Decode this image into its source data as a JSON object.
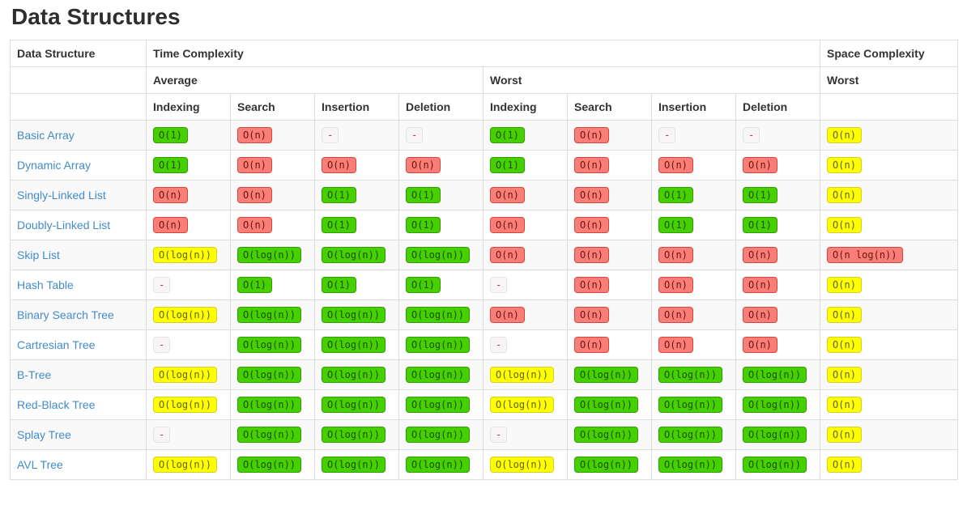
{
  "title": "Data Structures",
  "colors": {
    "excellent_green": "#46d000",
    "poor_red": "#f97e78",
    "fair_yellow": "#ffff00",
    "na_gray": "#f7f5f6",
    "link_blue": "#428bca",
    "border": "#dddddd",
    "stripe": "#f9f9f9"
  },
  "table": {
    "headers": {
      "data_structure": "Data Structure",
      "time_complexity": "Time Complexity",
      "space_complexity": "Space Complexity",
      "average": "Average",
      "worst": "Worst",
      "space_worst": "Worst",
      "operations": [
        "Indexing",
        "Search",
        "Insertion",
        "Deletion",
        "Indexing",
        "Search",
        "Insertion",
        "Deletion"
      ]
    },
    "rows": [
      {
        "name": "Basic Array",
        "cells": [
          {
            "t": "O(1)",
            "c": "green"
          },
          {
            "t": "O(n)",
            "c": "red"
          },
          {
            "t": "-",
            "c": "gray"
          },
          {
            "t": "-",
            "c": "gray"
          },
          {
            "t": "O(1)",
            "c": "green"
          },
          {
            "t": "O(n)",
            "c": "red"
          },
          {
            "t": "-",
            "c": "gray"
          },
          {
            "t": "-",
            "c": "gray"
          },
          {
            "t": "O(n)",
            "c": "yellow"
          }
        ]
      },
      {
        "name": "Dynamic Array",
        "cells": [
          {
            "t": "O(1)",
            "c": "green"
          },
          {
            "t": "O(n)",
            "c": "red"
          },
          {
            "t": "O(n)",
            "c": "red"
          },
          {
            "t": "O(n)",
            "c": "red"
          },
          {
            "t": "O(1)",
            "c": "green"
          },
          {
            "t": "O(n)",
            "c": "red"
          },
          {
            "t": "O(n)",
            "c": "red"
          },
          {
            "t": "O(n)",
            "c": "red"
          },
          {
            "t": "O(n)",
            "c": "yellow"
          }
        ]
      },
      {
        "name": "Singly-Linked List",
        "cells": [
          {
            "t": "O(n)",
            "c": "red"
          },
          {
            "t": "O(n)",
            "c": "red"
          },
          {
            "t": "O(1)",
            "c": "green"
          },
          {
            "t": "O(1)",
            "c": "green"
          },
          {
            "t": "O(n)",
            "c": "red"
          },
          {
            "t": "O(n)",
            "c": "red"
          },
          {
            "t": "O(1)",
            "c": "green"
          },
          {
            "t": "O(1)",
            "c": "green"
          },
          {
            "t": "O(n)",
            "c": "yellow"
          }
        ]
      },
      {
        "name": "Doubly-Linked List",
        "cells": [
          {
            "t": "O(n)",
            "c": "red"
          },
          {
            "t": "O(n)",
            "c": "red"
          },
          {
            "t": "O(1)",
            "c": "green"
          },
          {
            "t": "O(1)",
            "c": "green"
          },
          {
            "t": "O(n)",
            "c": "red"
          },
          {
            "t": "O(n)",
            "c": "red"
          },
          {
            "t": "O(1)",
            "c": "green"
          },
          {
            "t": "O(1)",
            "c": "green"
          },
          {
            "t": "O(n)",
            "c": "yellow"
          }
        ]
      },
      {
        "name": "Skip List",
        "cells": [
          {
            "t": "O(log(n))",
            "c": "yellow"
          },
          {
            "t": "O(log(n))",
            "c": "green"
          },
          {
            "t": "O(log(n))",
            "c": "green"
          },
          {
            "t": "O(log(n))",
            "c": "green"
          },
          {
            "t": "O(n)",
            "c": "red"
          },
          {
            "t": "O(n)",
            "c": "red"
          },
          {
            "t": "O(n)",
            "c": "red"
          },
          {
            "t": "O(n)",
            "c": "red"
          },
          {
            "t": "O(n log(n))",
            "c": "red"
          }
        ]
      },
      {
        "name": "Hash Table",
        "cells": [
          {
            "t": "-",
            "c": "gray"
          },
          {
            "t": "O(1)",
            "c": "green"
          },
          {
            "t": "O(1)",
            "c": "green"
          },
          {
            "t": "O(1)",
            "c": "green"
          },
          {
            "t": "-",
            "c": "gray"
          },
          {
            "t": "O(n)",
            "c": "red"
          },
          {
            "t": "O(n)",
            "c": "red"
          },
          {
            "t": "O(n)",
            "c": "red"
          },
          {
            "t": "O(n)",
            "c": "yellow"
          }
        ]
      },
      {
        "name": "Binary Search Tree",
        "cells": [
          {
            "t": "O(log(n))",
            "c": "yellow"
          },
          {
            "t": "O(log(n))",
            "c": "green"
          },
          {
            "t": "O(log(n))",
            "c": "green"
          },
          {
            "t": "O(log(n))",
            "c": "green"
          },
          {
            "t": "O(n)",
            "c": "red"
          },
          {
            "t": "O(n)",
            "c": "red"
          },
          {
            "t": "O(n)",
            "c": "red"
          },
          {
            "t": "O(n)",
            "c": "red"
          },
          {
            "t": "O(n)",
            "c": "yellow"
          }
        ]
      },
      {
        "name": "Cartresian Tree",
        "cells": [
          {
            "t": "-",
            "c": "gray"
          },
          {
            "t": "O(log(n))",
            "c": "green"
          },
          {
            "t": "O(log(n))",
            "c": "green"
          },
          {
            "t": "O(log(n))",
            "c": "green"
          },
          {
            "t": "-",
            "c": "gray"
          },
          {
            "t": "O(n)",
            "c": "red"
          },
          {
            "t": "O(n)",
            "c": "red"
          },
          {
            "t": "O(n)",
            "c": "red"
          },
          {
            "t": "O(n)",
            "c": "yellow"
          }
        ]
      },
      {
        "name": "B-Tree",
        "cells": [
          {
            "t": "O(log(n))",
            "c": "yellow"
          },
          {
            "t": "O(log(n))",
            "c": "green"
          },
          {
            "t": "O(log(n))",
            "c": "green"
          },
          {
            "t": "O(log(n))",
            "c": "green"
          },
          {
            "t": "O(log(n))",
            "c": "yellow"
          },
          {
            "t": "O(log(n))",
            "c": "green"
          },
          {
            "t": "O(log(n))",
            "c": "green"
          },
          {
            "t": "O(log(n))",
            "c": "green"
          },
          {
            "t": "O(n)",
            "c": "yellow"
          }
        ]
      },
      {
        "name": "Red-Black Tree",
        "cells": [
          {
            "t": "O(log(n))",
            "c": "yellow"
          },
          {
            "t": "O(log(n))",
            "c": "green"
          },
          {
            "t": "O(log(n))",
            "c": "green"
          },
          {
            "t": "O(log(n))",
            "c": "green"
          },
          {
            "t": "O(log(n))",
            "c": "yellow"
          },
          {
            "t": "O(log(n))",
            "c": "green"
          },
          {
            "t": "O(log(n))",
            "c": "green"
          },
          {
            "t": "O(log(n))",
            "c": "green"
          },
          {
            "t": "O(n)",
            "c": "yellow"
          }
        ]
      },
      {
        "name": "Splay Tree",
        "cells": [
          {
            "t": "-",
            "c": "gray"
          },
          {
            "t": "O(log(n))",
            "c": "green"
          },
          {
            "t": "O(log(n))",
            "c": "green"
          },
          {
            "t": "O(log(n))",
            "c": "green"
          },
          {
            "t": "-",
            "c": "gray"
          },
          {
            "t": "O(log(n))",
            "c": "green"
          },
          {
            "t": "O(log(n))",
            "c": "green"
          },
          {
            "t": "O(log(n))",
            "c": "green"
          },
          {
            "t": "O(n)",
            "c": "yellow"
          }
        ]
      },
      {
        "name": "AVL Tree",
        "cells": [
          {
            "t": "O(log(n))",
            "c": "yellow"
          },
          {
            "t": "O(log(n))",
            "c": "green"
          },
          {
            "t": "O(log(n))",
            "c": "green"
          },
          {
            "t": "O(log(n))",
            "c": "green"
          },
          {
            "t": "O(log(n))",
            "c": "yellow"
          },
          {
            "t": "O(log(n))",
            "c": "green"
          },
          {
            "t": "O(log(n))",
            "c": "green"
          },
          {
            "t": "O(log(n))",
            "c": "green"
          },
          {
            "t": "O(n)",
            "c": "yellow"
          }
        ]
      }
    ]
  }
}
